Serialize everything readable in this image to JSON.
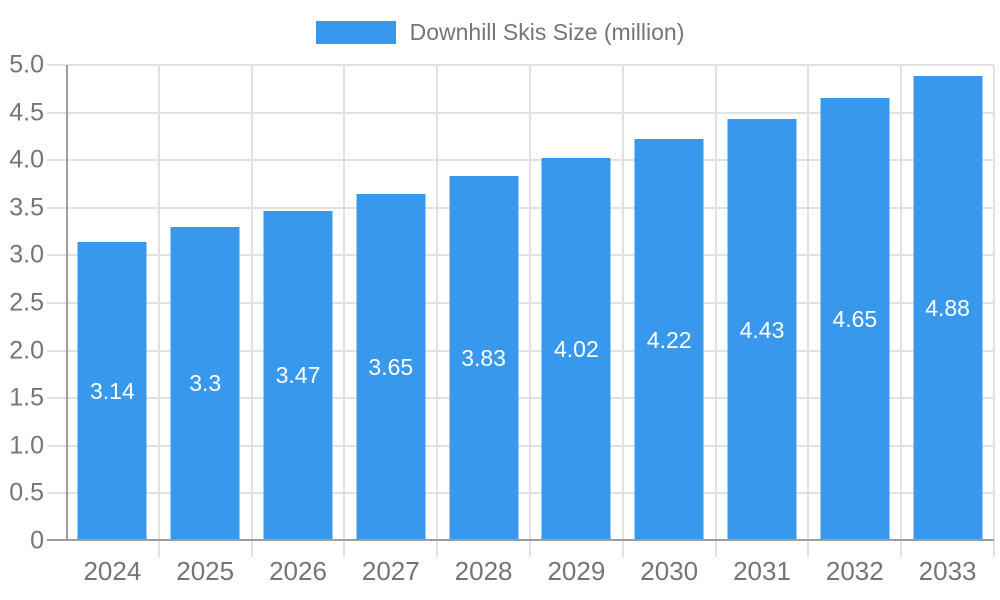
{
  "legend": {
    "swatch_color": "#3899EC"
  },
  "chart_data": {
    "type": "bar",
    "title": "Downhill Skis Size (million)",
    "xlabel": "",
    "ylabel": "",
    "categories": [
      "2024",
      "2025",
      "2026",
      "2027",
      "2028",
      "2029",
      "2030",
      "2031",
      "2032",
      "2033"
    ],
    "values": [
      3.14,
      3.3,
      3.47,
      3.65,
      3.83,
      4.02,
      4.22,
      4.43,
      4.65,
      4.88
    ],
    "value_labels": [
      "3.14",
      "3.3",
      "3.47",
      "3.65",
      "3.83",
      "4.02",
      "4.22",
      "4.43",
      "4.65",
      "4.88"
    ],
    "ylim": [
      0,
      5
    ],
    "ytick_values": [
      0,
      0.5,
      1,
      1.5,
      2,
      2.5,
      3,
      3.5,
      4,
      4.5,
      5
    ],
    "ytick_labels": [
      "0",
      "0.5",
      "1.0",
      "1.5",
      "2.0",
      "2.5",
      "3.0",
      "3.5",
      "4.0",
      "4.5",
      "5.0"
    ],
    "grid": true,
    "legend_position": "top",
    "bar_color": "#3899EC",
    "value_label_color": "#ffffff",
    "axis_text_color": "#757575",
    "grid_color": "#e2e2e2",
    "axis_line_color": "#9e9e9e"
  }
}
